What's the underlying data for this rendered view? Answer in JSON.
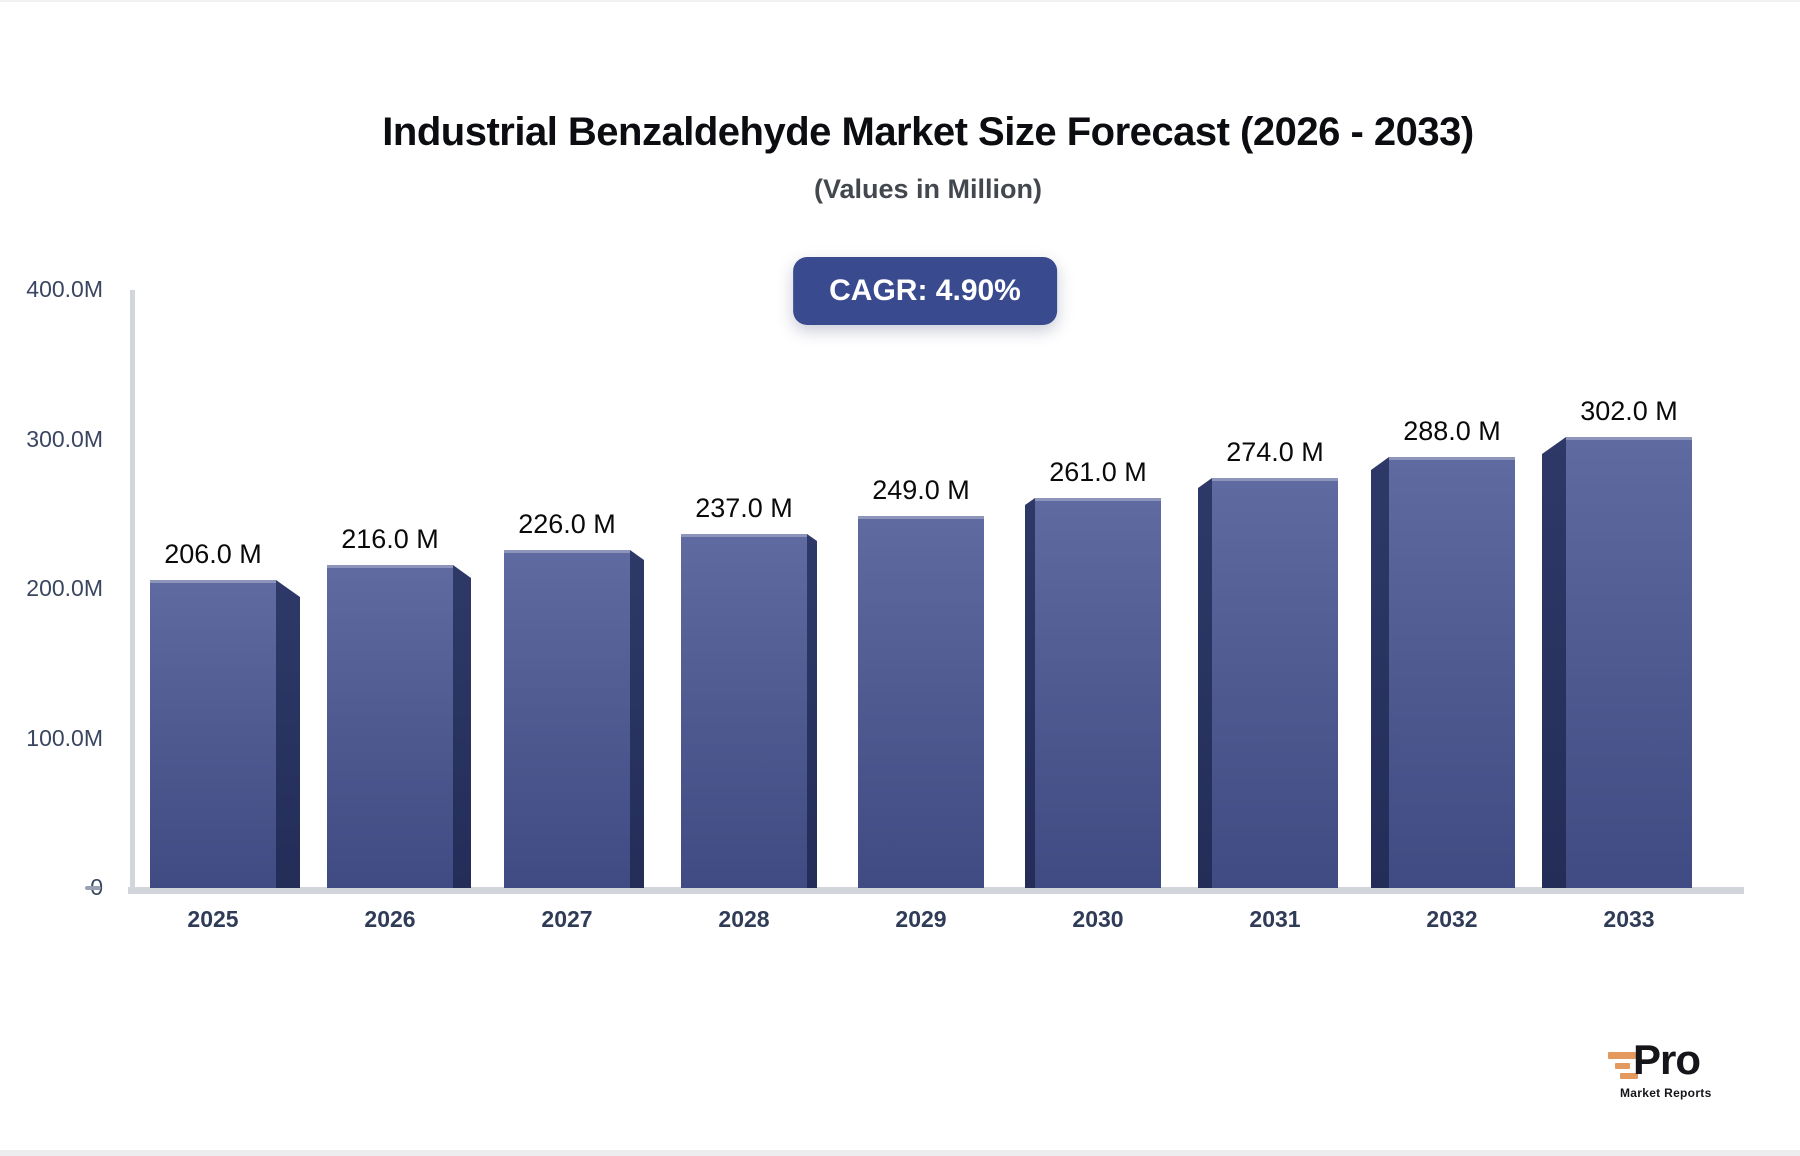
{
  "page": {
    "background": "#ffffff"
  },
  "badge": {
    "label": "CAGR: 4.90%",
    "background": "#3a4a8e",
    "text_color": "#ffffff"
  },
  "logo": {
    "name": "Pro",
    "tagline": "Market Reports",
    "accent_color": "#e49a5f"
  },
  "chart_data": {
    "type": "bar",
    "title": "Industrial Benzaldehyde Market Size Forecast (2026 - 2033)",
    "subtitle": "(Values in Million)",
    "cagr": "4.90%",
    "unit": "Million",
    "categories": [
      "2025",
      "2026",
      "2027",
      "2028",
      "2029",
      "2030",
      "2031",
      "2032",
      "2033"
    ],
    "values": [
      206.0,
      216.0,
      226.0,
      237.0,
      249.0,
      261.0,
      274.0,
      288.0,
      302.0
    ],
    "value_labels": [
      "206.0 M",
      "216.0 M",
      "226.0 M",
      "237.0 M",
      "249.0 M",
      "261.0 M",
      "274.0 M",
      "288.0 M",
      "302.0 M"
    ],
    "y_axis": {
      "range": [
        0,
        400
      ],
      "ticks": [
        {
          "label": "400.0M",
          "value": 400
        },
        {
          "label": "300.0M",
          "value": 300
        },
        {
          "label": "200.0M",
          "value": 200
        },
        {
          "label": "100.0M",
          "value": 100
        },
        {
          "label": "0",
          "value": 0
        }
      ]
    },
    "grid": false,
    "legend": "none",
    "colors": {
      "bar_top": "#5e6aa0",
      "bar_bottom": "#3f4b82",
      "bar_side_top": "#2e3968",
      "bar_side_bottom": "#242d58",
      "bar_top_edge": "#8d96ba",
      "axis": "#d3d5dc",
      "tick_text": "#3a4660",
      "category_text": "#2f3b57",
      "value_text": "#0a0a0a"
    }
  }
}
